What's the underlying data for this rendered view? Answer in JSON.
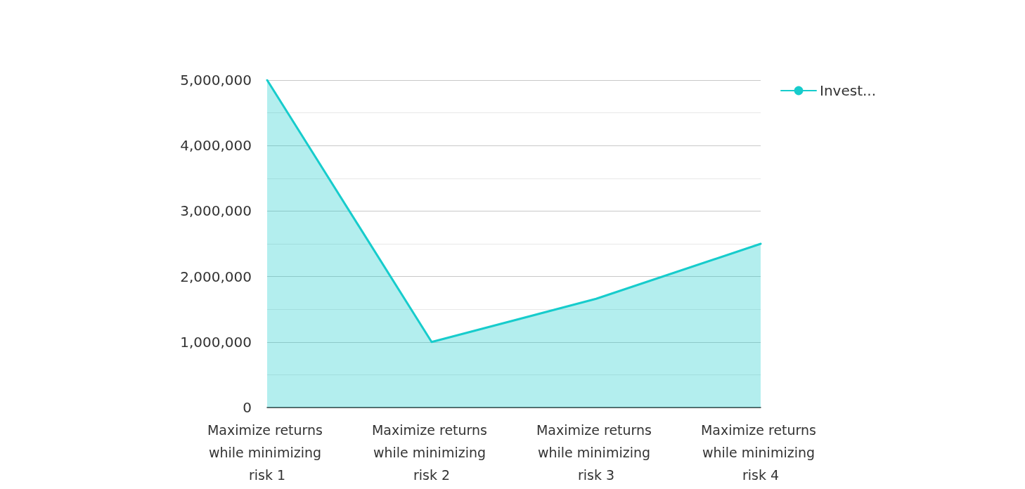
{
  "chart_data": {
    "type": "area",
    "categories": [
      "Maximize returns while minimizing risk 1",
      "Maximize returns while minimizing risk 2",
      "Maximize returns while minimizing risk 3",
      "Maximize returns while minimizing risk 4"
    ],
    "series": [
      {
        "name": "Invest...",
        "color": "#17cccc",
        "values": [
          5000000,
          1000000,
          1660000,
          2500000
        ]
      }
    ],
    "ylim": [
      0,
      5000000
    ],
    "yticks": [
      {
        "value": 0,
        "label": "0"
      },
      {
        "value": 500000,
        "label": null
      },
      {
        "value": 1000000,
        "label": "1,000,000"
      },
      {
        "value": 1500000,
        "label": null
      },
      {
        "value": 2000000,
        "label": "2,000,000"
      },
      {
        "value": 2500000,
        "label": null
      },
      {
        "value": 3000000,
        "label": "3,000,000"
      },
      {
        "value": 3500000,
        "label": null
      },
      {
        "value": 4000000,
        "label": "4,000,000"
      },
      {
        "value": 4500000,
        "label": null
      },
      {
        "value": 5000000,
        "label": "5,000,000"
      }
    ],
    "grid": "y",
    "legend": "top right",
    "marker": "none",
    "line_style": "solid"
  }
}
